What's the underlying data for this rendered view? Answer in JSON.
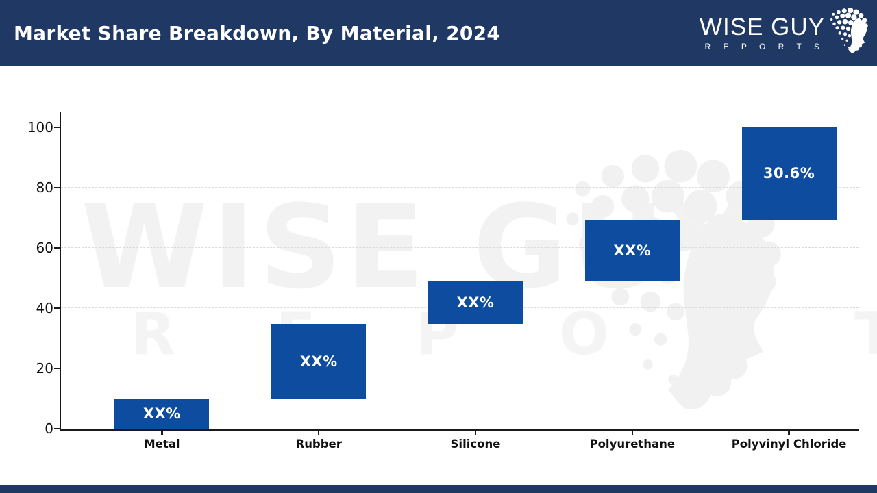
{
  "header": {
    "title": "Market Share Breakdown, By Material, 2024",
    "logo": {
      "line1": "WISE GUY",
      "line2": "R E P O R T S"
    }
  },
  "watermark": {
    "line1": "WISE GUY",
    "line2": "R E P O R T S"
  },
  "chart_data": {
    "type": "bar",
    "subtype": "floating-waterfall",
    "title": "Market Share Breakdown, By Material, 2024",
    "categories": [
      "Metal",
      "Rubber",
      "Silicone",
      "Polyurethane",
      "Polyvinyl Chloride"
    ],
    "series": [
      {
        "name": "Market Share (%)",
        "segments": [
          {
            "category": "Metal",
            "start": 0,
            "end": 10,
            "label": "XX%"
          },
          {
            "category": "Rubber",
            "start": 10,
            "end": 34.7,
            "label": "XX%"
          },
          {
            "category": "Silicone",
            "start": 34.7,
            "end": 48.8,
            "label": "XX%"
          },
          {
            "category": "Polyurethane",
            "start": 48.8,
            "end": 69.4,
            "label": "XX%"
          },
          {
            "category": "Polyvinyl Chloride",
            "start": 69.4,
            "end": 100,
            "label": "30.6%"
          }
        ]
      }
    ],
    "yticks": [
      0,
      20,
      40,
      60,
      80,
      100
    ],
    "ylim": [
      0,
      104.8
    ],
    "xlabel": "",
    "ylabel": "",
    "grid": "horizontal-dashed",
    "legend": false,
    "colors": {
      "bar": "#0d4c9e",
      "bar_label": "#ffffff",
      "header_bg": "#1f3864",
      "footer_bg": "#1f3864",
      "grid": "#d9d9d9",
      "axis": "#1a1a1a",
      "watermark": "#f2f2f2"
    }
  }
}
